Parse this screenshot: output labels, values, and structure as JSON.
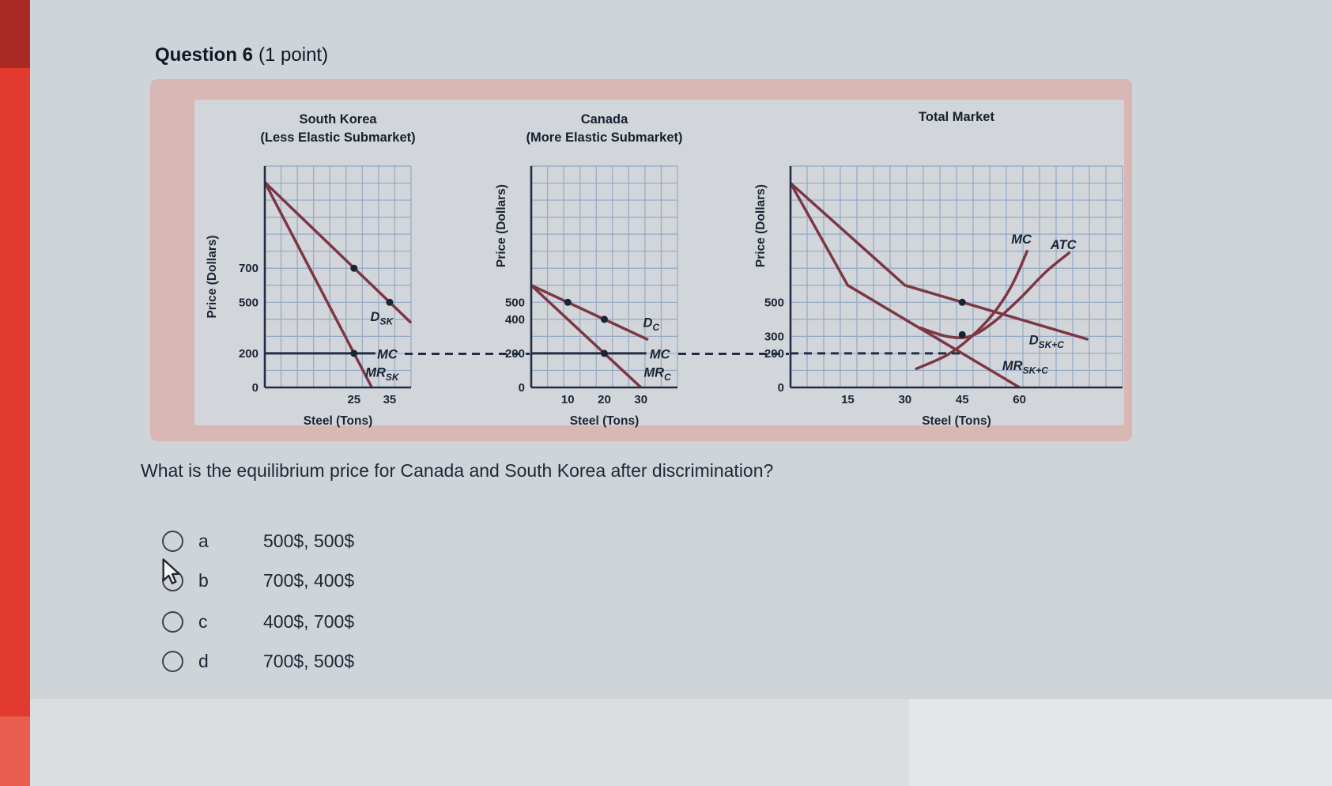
{
  "header": {
    "question": "Question 6",
    "points": "(1 point)"
  },
  "question": "What is the equilibrium price for Canada and South Korea after discrimination?",
  "options": [
    {
      "letter": "a",
      "value": "500$, 500$"
    },
    {
      "letter": "b",
      "value": "700$, 400$"
    },
    {
      "letter": "c",
      "value": "400$, 700$"
    },
    {
      "letter": "d",
      "value": "700$, 500$"
    }
  ],
  "colors": {
    "curve": "#7d3744",
    "axis": "#232d45",
    "grid": "#93a9c6",
    "dot": "#1c2433",
    "accent_red": "#e23a2e",
    "panel_pink": "#d8b7b4",
    "page_bg": "#cfd4d9"
  },
  "chart_data": [
    {
      "type": "line",
      "title": "South Korea",
      "subtitle": "(Less Elastic Submarket)",
      "xlabel": "Steel (Tons)",
      "ylabel": "Price (Dollars)",
      "xlim": [
        0,
        41
      ],
      "ylim": [
        0,
        1300
      ],
      "x_ticks": [
        {
          "v": 25,
          "label": "25"
        },
        {
          "v": 35,
          "label": "35"
        }
      ],
      "y_ticks": [
        {
          "v": 700,
          "label": "700"
        },
        {
          "v": 500,
          "label": "500"
        },
        {
          "v": 200,
          "label": "200"
        },
        {
          "v": 0,
          "label": "0"
        }
      ],
      "series": [
        {
          "name": "D_SK",
          "points": [
            [
              0,
              1205
            ],
            [
              41,
              380
            ]
          ],
          "color": "curve",
          "width": 3.5
        },
        {
          "name": "MR_SK",
          "points": [
            [
              0,
              1205
            ],
            [
              30,
              0
            ]
          ],
          "color": "curve",
          "width": 3.5
        },
        {
          "name": "MC",
          "points": [
            [
              0,
              200
            ],
            [
              31,
              200
            ]
          ],
          "color": "axis",
          "width": 3
        }
      ],
      "dots": [
        [
          25,
          700
        ],
        [
          25,
          200
        ],
        [
          35,
          500
        ]
      ],
      "labels": [
        {
          "main": "D",
          "sub": "SK",
          "x": 29.6,
          "y": 390
        },
        {
          "main": "MC",
          "sub": "",
          "x": 31.5,
          "y": 170
        },
        {
          "main": "MR",
          "sub": "SK",
          "x": 28.2,
          "y": 62
        }
      ]
    },
    {
      "type": "line",
      "title": "Canada",
      "subtitle": "(More Elastic Submarket)",
      "xlabel": "Steel (Tons)",
      "ylabel": "Price (Dollars)",
      "xlim": [
        0,
        40
      ],
      "ylim": [
        0,
        1300
      ],
      "x_ticks": [
        {
          "v": 10,
          "label": "10"
        },
        {
          "v": 20,
          "label": "20"
        },
        {
          "v": 30,
          "label": "30"
        }
      ],
      "y_ticks": [
        {
          "v": 500,
          "label": "500"
        },
        {
          "v": 400,
          "label": "400"
        },
        {
          "v": 200,
          "label": "200"
        },
        {
          "v": 0,
          "label": "0"
        }
      ],
      "series": [
        {
          "name": "D_C",
          "points": [
            [
              0,
              600
            ],
            [
              32,
              280
            ]
          ],
          "color": "curve",
          "width": 3.5
        },
        {
          "name": "MR_C",
          "points": [
            [
              0,
              600
            ],
            [
              30,
              0
            ]
          ],
          "color": "curve",
          "width": 3.5
        },
        {
          "name": "MC",
          "points": [
            [
              0,
              200
            ],
            [
              31.5,
              200
            ]
          ],
          "color": "axis",
          "width": 3
        }
      ],
      "dots": [
        [
          10,
          500
        ],
        [
          20,
          400
        ],
        [
          20,
          200
        ]
      ],
      "labels": [
        {
          "main": "D",
          "sub": "C",
          "x": 30.6,
          "y": 355
        },
        {
          "main": "MC",
          "sub": "",
          "x": 32.4,
          "y": 170
        },
        {
          "main": "MR",
          "sub": "C",
          "x": 30.8,
          "y": 62
        }
      ]
    },
    {
      "type": "line",
      "title": "Total Market",
      "subtitle": "",
      "xlabel": "Steel (Tons)",
      "ylabel": "Price (Dollars)",
      "xlim": [
        0,
        87
      ],
      "ylim": [
        0,
        1300
      ],
      "x_ticks": [
        {
          "v": 15,
          "label": "15"
        },
        {
          "v": 30,
          "label": "30"
        },
        {
          "v": 45,
          "label": "45"
        },
        {
          "v": 60,
          "label": "60"
        }
      ],
      "y_ticks": [
        {
          "v": 500,
          "label": "500"
        },
        {
          "v": 300,
          "label": "300"
        },
        {
          "v": 200,
          "label": "200"
        },
        {
          "v": 0,
          "label": "0"
        }
      ],
      "series": [
        {
          "name": "D_SK+C",
          "points": [
            [
              0,
              1200
            ],
            [
              30,
              600
            ],
            [
              78,
              282
            ]
          ],
          "color": "curve",
          "width": 3.5
        },
        {
          "name": "MR_SK+C",
          "points": [
            [
              0,
              1200
            ],
            [
              15,
              600
            ],
            [
              60,
              0
            ]
          ],
          "color": "curve",
          "width": 3.5
        },
        {
          "name": "MC",
          "points": [
            [
              33,
              110
            ],
            [
              41,
              190
            ],
            [
              47,
              290
            ],
            [
              53,
              430
            ],
            [
              58,
              600
            ],
            [
              62,
              800
            ]
          ],
          "smooth": true,
          "color": "curve",
          "width": 3.5
        },
        {
          "name": "ATC",
          "points": [
            [
              34,
              350
            ],
            [
              41,
              300
            ],
            [
              47,
              300
            ],
            [
              53,
              380
            ],
            [
              60,
              520
            ],
            [
              67,
              680
            ],
            [
              73,
              790
            ]
          ],
          "smooth": true,
          "color": "curve",
          "width": 3.5
        },
        {
          "name": "MC_dashed_200",
          "points": [
            [
              0,
              200
            ],
            [
              45,
              200
            ]
          ],
          "color": "axis",
          "width": 3,
          "dash": true
        }
      ],
      "dots": [
        [
          45,
          500
        ],
        [
          45,
          310
        ]
      ],
      "labels": [
        {
          "main": "MC",
          "sub": "",
          "x": 60.5,
          "y": 845,
          "anchor": "middle"
        },
        {
          "main": "ATC",
          "sub": "",
          "x": 71.5,
          "y": 812,
          "anchor": "middle"
        },
        {
          "main": "D",
          "sub": "SK+C",
          "x": 62.5,
          "y": 252
        },
        {
          "main": "MR",
          "sub": "SK+C",
          "x": 55.5,
          "y": 102
        }
      ]
    }
  ]
}
